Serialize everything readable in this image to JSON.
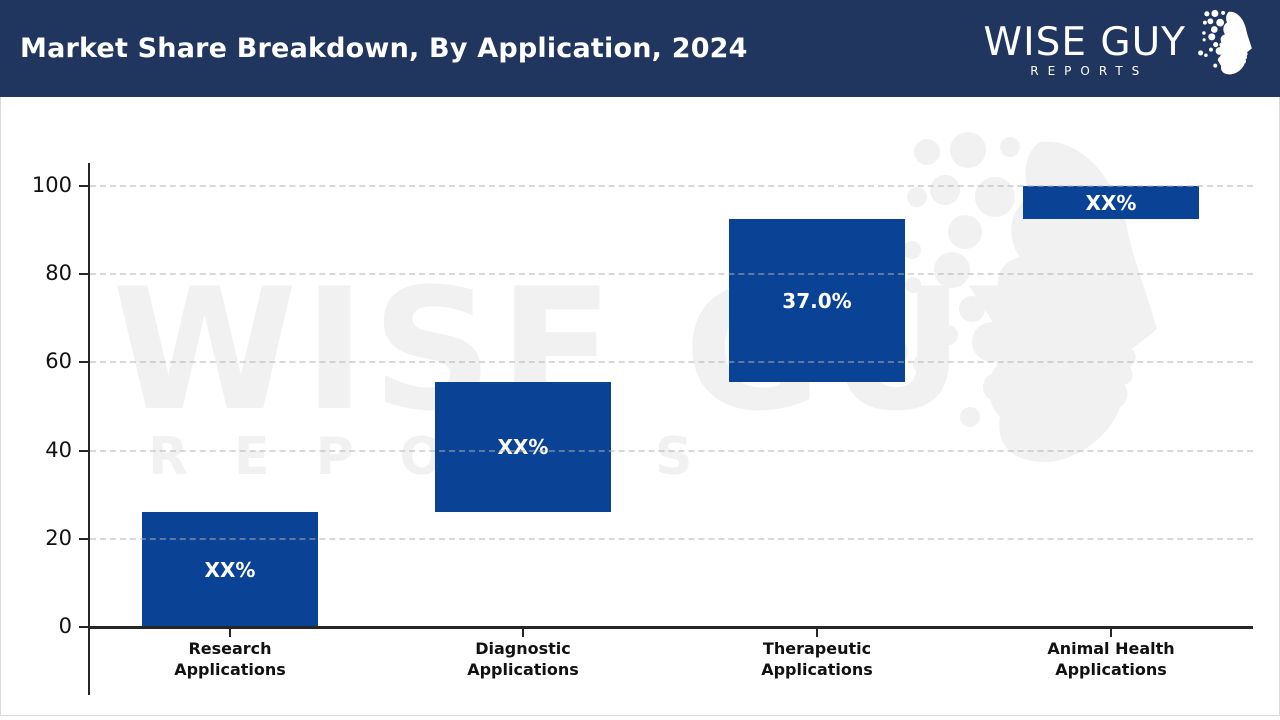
{
  "header": {
    "title": "Market Share Breakdown, By Application, 2024",
    "logo_line1": "WISE GUY",
    "logo_line2": "REPORTS"
  },
  "watermark": {
    "line1": "WISE GUY",
    "line2": "REPORTS"
  },
  "colors": {
    "header_bg": "#21365F",
    "bar": "#0A4396",
    "bar_label": "#FFFFFF",
    "watermark": "#F1F1F1",
    "axis": "#262626",
    "gridline": "#B2B2B2"
  },
  "chart_data": {
    "type": "bar",
    "subtype": "floating-segment-breakdown",
    "title": "Market Share Breakdown, By Application, 2024",
    "categories": [
      {
        "line1": "Research",
        "line2": "Applications"
      },
      {
        "line1": "Diagnostic",
        "line2": "Applications"
      },
      {
        "line1": "Therapeutic",
        "line2": "Applications"
      },
      {
        "line1": "Animal Health",
        "line2": "Applications"
      }
    ],
    "segments": [
      {
        "category": "Research Applications",
        "start": 0,
        "end": 26,
        "value": 26,
        "value_label": "XX%"
      },
      {
        "category": "Diagnostic Applications",
        "start": 26,
        "end": 55.5,
        "value": 29.5,
        "value_label": "XX%"
      },
      {
        "category": "Therapeutic Applications",
        "start": 55.5,
        "end": 92.5,
        "value": 37.0,
        "value_label": "37.0%"
      },
      {
        "category": "Animal Health Applications",
        "start": 92.5,
        "end": 100,
        "value": 7.5,
        "value_label": "XX%"
      }
    ],
    "ylim": [
      0,
      100
    ],
    "yticks": [
      0,
      20,
      40,
      60,
      80,
      100
    ],
    "xlabel": "",
    "ylabel": "",
    "grid": "horizontal-dashed",
    "legend": null
  }
}
